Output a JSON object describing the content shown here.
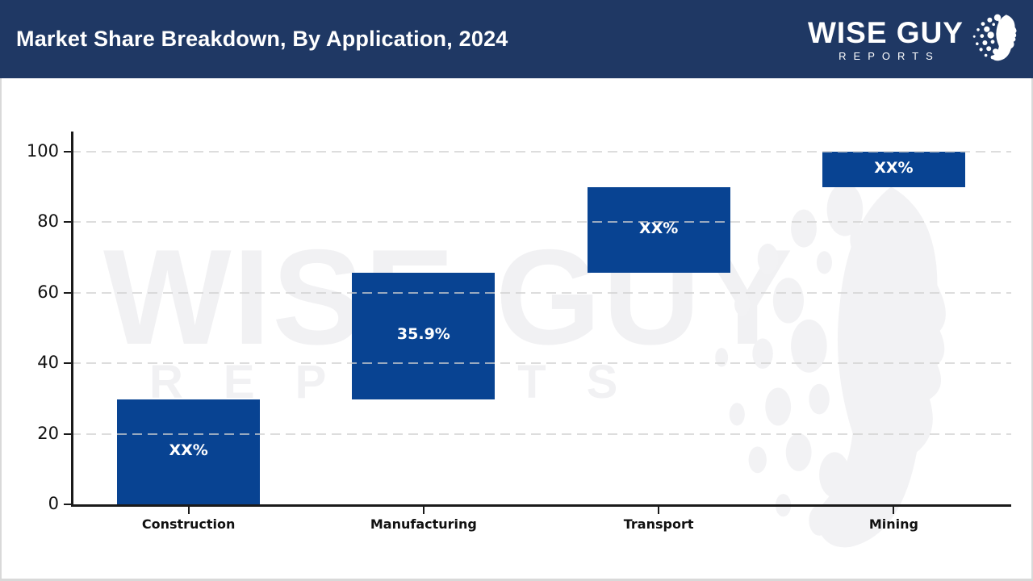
{
  "header": {
    "title": "Market Share Breakdown, By Application, 2024",
    "bg_color": "#1f3864",
    "logo": {
      "line1": "WISE GUY",
      "line2": "REPORTS"
    }
  },
  "watermark": {
    "line1": "WISE GUY",
    "line2": "REPORTS"
  },
  "chart_data": {
    "type": "bar",
    "subtype": "waterfall-floating-bars",
    "title": "Market Share Breakdown, By Application, 2024",
    "categories": [
      "Construction",
      "Manufacturing",
      "Transport",
      "Mining"
    ],
    "series": [
      {
        "name": "Market Share %",
        "values": [
          29.8,
          35.9,
          24.3,
          10.0
        ]
      }
    ],
    "segment_starts": [
      0,
      29.8,
      65.7,
      90.0
    ],
    "bar_labels": [
      "XX%",
      "35.9%",
      "XX%",
      "XX%"
    ],
    "xlabel": "",
    "ylabel": "",
    "ylim": [
      0,
      100
    ],
    "yticks": [
      0,
      20,
      40,
      60,
      80,
      100
    ],
    "grid": "horizontal dashed",
    "legend": "none",
    "colors": {
      "bar": "#084392",
      "bar_label": "#ffffff",
      "grid": "#d9d9d9",
      "axis": "#1a1a1a",
      "header_bg": "#1f3864",
      "watermark": "#f1f1f3"
    }
  }
}
